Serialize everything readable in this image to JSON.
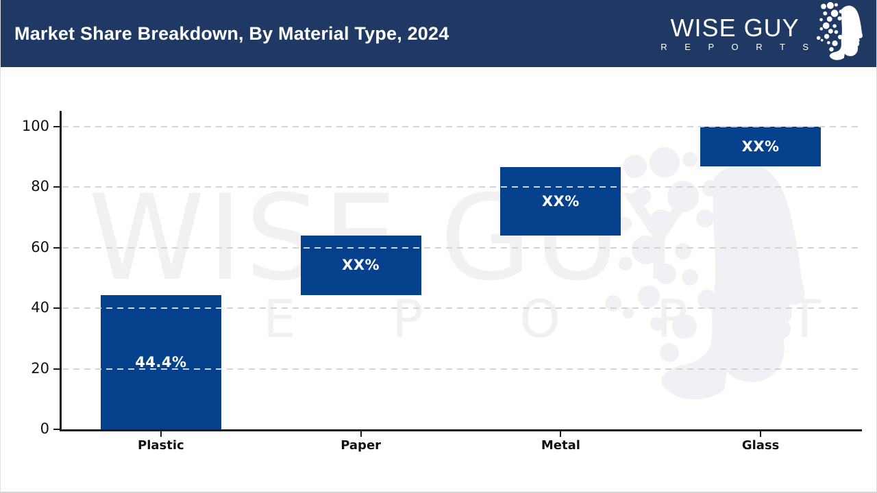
{
  "header": {
    "title": "Market Share Breakdown, By Material Type, 2024",
    "logo_line1": "WISE GUY",
    "logo_line2": "R E P O R T S",
    "bg_color": "#1f3864"
  },
  "watermark": {
    "line1": "WISE GUY",
    "line2": "R E P O R T S"
  },
  "chart_data": {
    "type": "bar",
    "subtype": "waterfall",
    "title": "Market Share Breakdown, By Material Type, 2024",
    "categories": [
      "Plastic",
      "Paper",
      "Metal",
      "Glass"
    ],
    "segments": [
      {
        "category": "Plastic",
        "start": 0,
        "end": 44.4,
        "label": "44.4%"
      },
      {
        "category": "Paper",
        "start": 44.4,
        "end": 64.0,
        "label": "XX%"
      },
      {
        "category": "Metal",
        "start": 64.0,
        "end": 86.6,
        "label": "XX%"
      },
      {
        "category": "Glass",
        "start": 86.8,
        "end": 100.0,
        "label": "XX%"
      }
    ],
    "yticks": [
      0,
      20,
      40,
      60,
      80,
      100
    ],
    "ylim": [
      0,
      105
    ],
    "xlabel": "",
    "ylabel": "",
    "legend": "none",
    "grid": "horizontal-dashed-over-bars",
    "bar_color": "#06418e",
    "grid_color": "#d4d4d4"
  }
}
